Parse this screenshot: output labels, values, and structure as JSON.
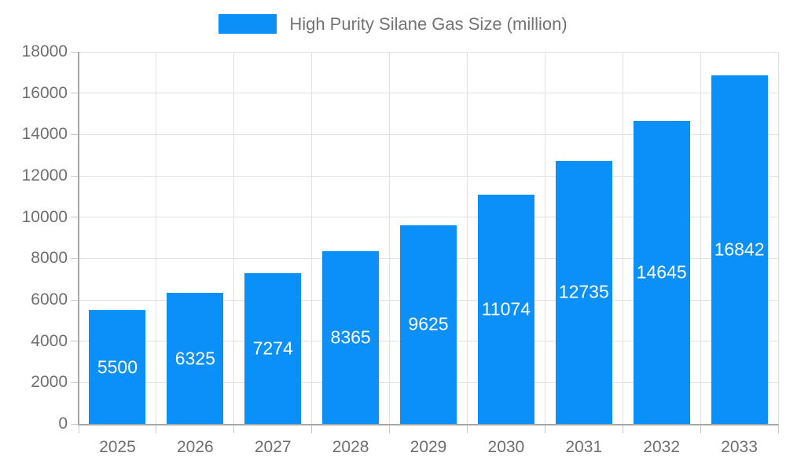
{
  "chart_data": {
    "type": "bar",
    "title": "High Purity Silane Gas Size (million)",
    "legend": {
      "position": "top",
      "label": "High Purity Silane Gas Size (million)"
    },
    "categories": [
      "2025",
      "2026",
      "2027",
      "2028",
      "2029",
      "2030",
      "2031",
      "2032",
      "2033"
    ],
    "values": [
      5500,
      6325,
      7274,
      8365,
      9625,
      11074,
      12735,
      14645,
      16842
    ],
    "xlabel": "",
    "ylabel": "",
    "ylim": [
      0,
      18000
    ],
    "ytick_step": 2000,
    "ytick_labels": [
      "0",
      "2000",
      "4000",
      "6000",
      "8000",
      "10000",
      "12000",
      "14000",
      "16000",
      "18000"
    ],
    "grid": true,
    "value_labels_inside_bars": true,
    "colors": {
      "bar": "#0a90f8",
      "grid": "#e2e2e2",
      "axis_line": "#a6a6a6",
      "tick": "#c9c9c9",
      "axis_text": "#6f6f6f",
      "legend_text": "#737373",
      "value_label_text": "#ffffff",
      "background": "#ffffff"
    }
  }
}
